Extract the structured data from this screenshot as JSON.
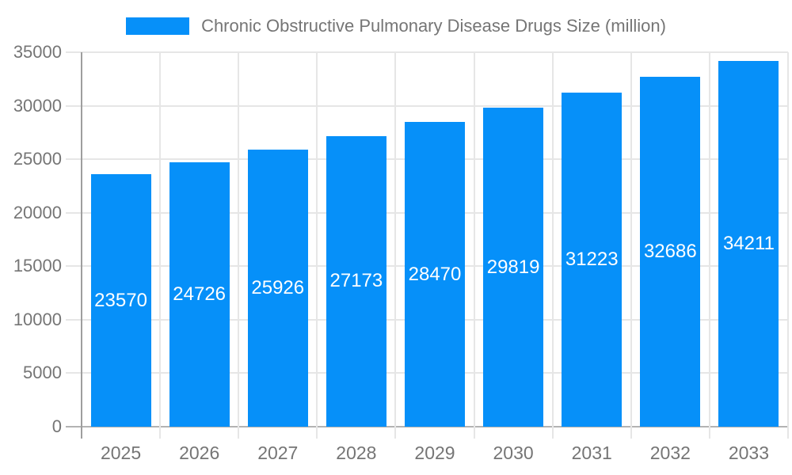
{
  "legend": {
    "label": "Chronic Obstructive Pulmonary Disease Drugs Size (million)"
  },
  "colors": {
    "bar": "#0690F9",
    "grid": "#e6e6e6",
    "axis_line": "#9e9e9e",
    "baseline": "#b3b3b3",
    "tick_label": "#757575",
    "bar_label": "#ffffff"
  },
  "chart_data": {
    "type": "bar",
    "title": "Chronic Obstructive Pulmonary Disease Drugs Size (million)",
    "categories": [
      "2025",
      "2026",
      "2027",
      "2028",
      "2029",
      "2030",
      "2031",
      "2032",
      "2033"
    ],
    "series": [
      {
        "name": "Chronic Obstructive Pulmonary Disease Drugs Size (million)",
        "values": [
          23570,
          24726,
          25926,
          27173,
          28470,
          29819,
          31223,
          32686,
          34211
        ]
      }
    ],
    "xlabel": "",
    "ylabel": "",
    "ylim": [
      0,
      35000
    ],
    "yticks": [
      0,
      5000,
      10000,
      15000,
      20000,
      25000,
      30000,
      35000
    ],
    "grid": true,
    "legend_position": "top",
    "bar_value_labels": "inside-center-white"
  }
}
